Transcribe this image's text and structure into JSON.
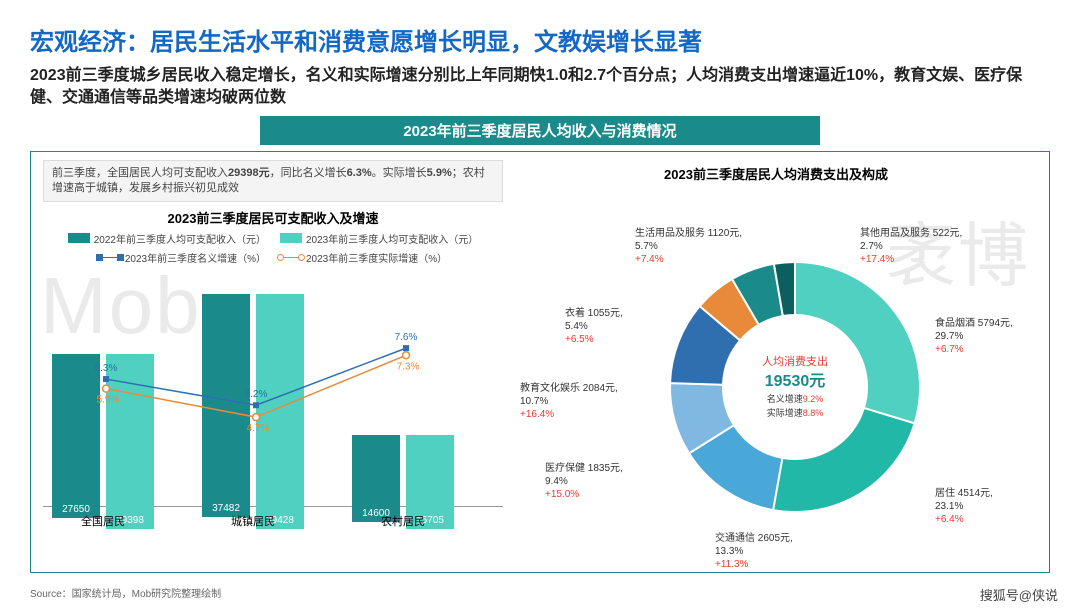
{
  "colors": {
    "title": "#1268c4",
    "teal_dark": "#1a8a8a",
    "teal_light": "#4fd0c0",
    "blue": "#2f6fb0",
    "orange": "#e98a3a",
    "red": "#e63c2f"
  },
  "title": "宏观经济：居民生活水平和消费意愿增长明显，文教娱增长显著",
  "subtitle": "2023前三季度城乡居民收入稳定增长，名义和实际增速分别比上年同期快1.0和2.7个百分点；人均消费支出增速逼近10%，教育文娱、医疗保健、交通通信等品类增速均破两位数",
  "banner": "2023年前三季度居民人均收入与消费情况",
  "note_html": "前三季度，全国居民人均可支配收入<b>29398元</b>，同比名义增长<b>6.3%</b>。实际增长<b>5.9%</b>；农村增速高于城镇，发展乡村振兴初见成效",
  "bar": {
    "title": "2023前三季度居民可支配收入及增速",
    "legend": [
      "2022年前三季度人均可支配收入（元）",
      "2023年前三季度人均可支配收入（元）",
      "2023年前三季度名义增速（%）",
      "2023年前三季度实际增速（%）"
    ],
    "categories": [
      "全国居民",
      "城镇居民",
      "农村居民"
    ],
    "y2022": [
      27650,
      37482,
      14600
    ],
    "y2023": [
      29398,
      39428,
      15705
    ],
    "nominal": [
      6.3,
      5.2,
      7.6
    ],
    "real": [
      5.9,
      4.7,
      7.3
    ],
    "ymax": 40000,
    "pmax": 10
  },
  "pie": {
    "title": "2023前三季度居民人均消费支出及构成",
    "center": {
      "l1": "人均消费支出",
      "v": "19530元",
      "l2": "名义增速",
      "v2": "9.2%",
      "l3": "实际增速",
      "v3": "8.8%"
    },
    "slices": [
      {
        "name": "食品烟酒",
        "val": 5794,
        "pct": 29.7,
        "g": "+6.7%",
        "color": "#4fd0c0"
      },
      {
        "name": "居住",
        "val": 4514,
        "pct": 23.1,
        "g": "+6.4%",
        "color": "#22b8a8"
      },
      {
        "name": "交通通信",
        "val": 2605,
        "pct": 13.3,
        "g": "+11.3%",
        "color": "#4aa8d8"
      },
      {
        "name": "医疗保健",
        "val": 1835,
        "pct": 9.4,
        "g": "+15.0%",
        "color": "#7fb8e0"
      },
      {
        "name": "教育文化娱乐",
        "val": 2084,
        "pct": 10.7,
        "g": "+16.4%",
        "color": "#2f6fb0"
      },
      {
        "name": "衣着",
        "val": 1055,
        "pct": 5.4,
        "g": "+6.5%",
        "color": "#e98a3a"
      },
      {
        "name": "生活用品及服务",
        "val": 1120,
        "pct": 5.7,
        "g": "+7.4%",
        "color": "#1a8a8a"
      },
      {
        "name": "其他用品及服务",
        "val": 522,
        "pct": 2.7,
        "g": "+17.4%",
        "color": "#0d5f5f"
      }
    ]
  },
  "source": "Source：国家统计局，Mob研究院整理绘制",
  "footer": "搜狐号@侠说"
}
